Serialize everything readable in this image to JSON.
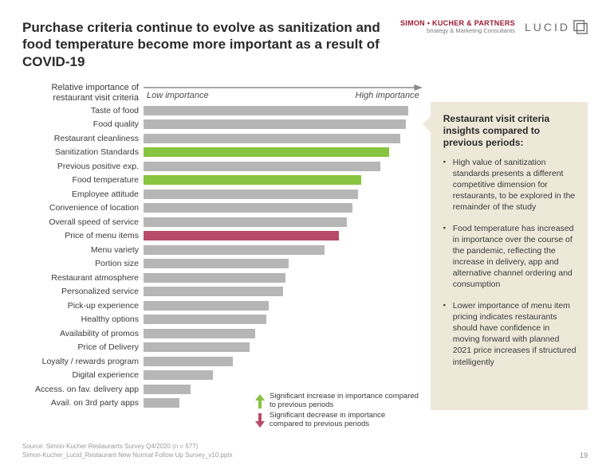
{
  "title": "Purchase criteria continue to evolve as sanitization and food temperature become more important as a result of COVID-19",
  "logos": {
    "skp_name_1": "SIMON",
    "skp_dot": " • ",
    "skp_name_2": "KUCHER & PARTNERS",
    "skp_tag": "Strategy & Marketing Consultants",
    "lucid": "LUCID"
  },
  "chart": {
    "type": "bar",
    "y_axis_title_l1": "Relative importance of",
    "y_axis_title_l2": "restaurant visit criteria",
    "low_label": "Low importance",
    "high_label": "High importance",
    "bar_max": 100,
    "default_color": "#b6b6b6",
    "highlight_up_color": "#87c440",
    "highlight_down_color": "#b84a6a",
    "background_color": "#ffffff",
    "bars": [
      {
        "label": "Taste of food",
        "value": 95,
        "color": "#b6b6b6"
      },
      {
        "label": "Food quality",
        "value": 94,
        "color": "#b6b6b6"
      },
      {
        "label": "Restaurant cleanliness",
        "value": 92,
        "color": "#b6b6b6"
      },
      {
        "label": "Sanitization Standards",
        "value": 88,
        "color": "#87c440"
      },
      {
        "label": "Previous positive exp.",
        "value": 85,
        "color": "#b6b6b6"
      },
      {
        "label": "Food temperature",
        "value": 78,
        "color": "#87c440"
      },
      {
        "label": "Employee attitude",
        "value": 77,
        "color": "#b6b6b6"
      },
      {
        "label": "Convenience of location",
        "value": 75,
        "color": "#b6b6b6"
      },
      {
        "label": "Overall speed of service",
        "value": 73,
        "color": "#b6b6b6"
      },
      {
        "label": "Price of menu items",
        "value": 70,
        "color": "#b84a6a"
      },
      {
        "label": "Menu variety",
        "value": 65,
        "color": "#b6b6b6"
      },
      {
        "label": "Portion size",
        "value": 52,
        "color": "#b6b6b6"
      },
      {
        "label": "Restaurant atmosphere",
        "value": 51,
        "color": "#b6b6b6"
      },
      {
        "label": "Personalized service",
        "value": 50,
        "color": "#b6b6b6"
      },
      {
        "label": "Pick-up experience",
        "value": 45,
        "color": "#b6b6b6"
      },
      {
        "label": "Healthy options",
        "value": 44,
        "color": "#b6b6b6"
      },
      {
        "label": "Availability of promos",
        "value": 40,
        "color": "#b6b6b6"
      },
      {
        "label": "Price of Delivery",
        "value": 38,
        "color": "#b6b6b6"
      },
      {
        "label": "Loyalty / rewards program",
        "value": 32,
        "color": "#b6b6b6"
      },
      {
        "label": "Digital experience",
        "value": 25,
        "color": "#b6b6b6"
      },
      {
        "label": "Access. on fav. delivery app",
        "value": 17,
        "color": "#b6b6b6"
      },
      {
        "label": "Avail. on 3rd party apps",
        "value": 13,
        "color": "#b6b6b6"
      }
    ],
    "legend": {
      "up_color": "#87c440",
      "up_text": "Significant increase in importance compared to previous periods",
      "down_color": "#b84a6a",
      "down_text": "Significant decrease in importance compared to previous periods"
    }
  },
  "sidebar": {
    "background_color": "#eee8d9",
    "title": "Restaurant visit criteria insights compared to previous periods:",
    "bullets": [
      "High value of sanitization standards presents a different competitive dimension for restaurants, to be explored in the remainder of the study",
      "Food temperature has increased in importance over the course of the pandemic, reflecting the increase in delivery, app and alternative channel ordering and consumption",
      "Lower importance of menu item pricing indicates restaurants should have confidence in moving forward with planned 2021 price increases if structured intelligently"
    ]
  },
  "footer": {
    "source": "Source: Simon-Kucher Restaurants Survey Q4/2020 (n = 577)",
    "filepath": "Simon-Kucher_Lucid_Restaurant New Normal Follow Up Survey_v10.pptx",
    "page": "19"
  }
}
